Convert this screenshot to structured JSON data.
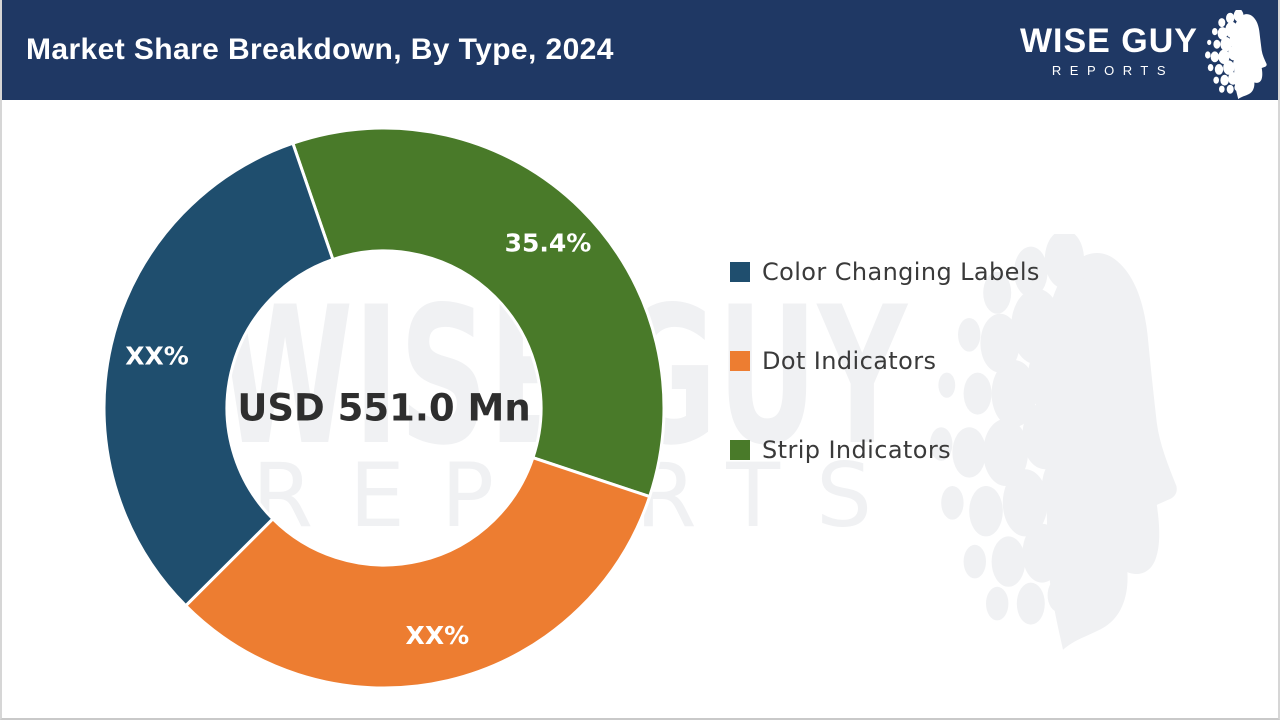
{
  "header": {
    "title": "Market Share Breakdown, By Type, 2024",
    "bg_color": "#1F3864",
    "logo": {
      "line1": "WISE GUY",
      "line2": "REPORTS"
    }
  },
  "watermark": {
    "line1": "WISE GUY",
    "line2": "REPORTS"
  },
  "chart_data": {
    "type": "pie",
    "subtype": "donut",
    "title": "Market Share Breakdown, By Type, 2024",
    "center_label": "USD 551.0 Mn",
    "legend_position": "right",
    "start_angle_deg": -19,
    "render_order": [
      2,
      1,
      0
    ],
    "segments": [
      {
        "name": "Color Changing Labels",
        "display_label": "XX%",
        "value_pct": 32.2,
        "color": "#1F4E6E"
      },
      {
        "name": "Dot Indicators",
        "display_label": "XX%",
        "value_pct": 32.4,
        "color": "#ED7D31"
      },
      {
        "name": "Strip Indicators",
        "display_label": "35.4%",
        "value_pct": 35.4,
        "color": "#497A29"
      }
    ]
  }
}
